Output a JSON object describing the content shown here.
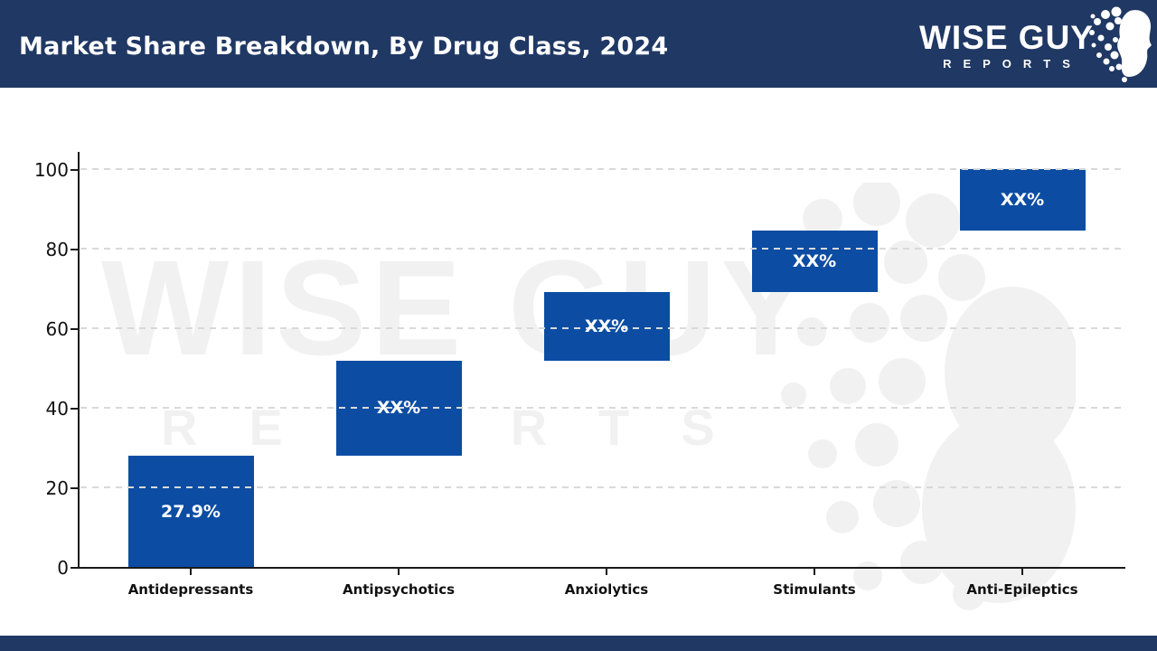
{
  "header": {
    "title": "Market Share Breakdown, By Drug Class, 2024",
    "logo": {
      "line1": "WISE GUY",
      "line2": "REPORTS"
    }
  },
  "watermark": {
    "line1": "WISE GUY",
    "line2": "REPORTS"
  },
  "colors": {
    "header_navy": "#203864",
    "footer_navy": "#203864",
    "bar_blue": "#0c4da3",
    "gridline": "#d9d9d9",
    "axis": "#1a1a1a",
    "watermark_gray": "#f1f1f1",
    "bar_label_text": "#ffffff"
  },
  "chart_data": {
    "type": "bar",
    "subtype": "waterfall-floating-bars",
    "title": "Market Share Breakdown, By Drug Class, 2024",
    "categories": [
      "Antidepressants",
      "Antipsychotics",
      "Anxiolytics",
      "Stimulants",
      "Anti-Epileptics"
    ],
    "segments": [
      {
        "category": "Antidepressants",
        "start": 0,
        "end": 27.9,
        "label": "27.9%"
      },
      {
        "category": "Antipsychotics",
        "start": 27.9,
        "end": 51.9,
        "label": "XX%"
      },
      {
        "category": "Anxiolytics",
        "start": 51.9,
        "end": 69.2,
        "label": "XX%"
      },
      {
        "category": "Stimulants",
        "start": 69.2,
        "end": 84.6,
        "label": "XX%"
      },
      {
        "category": "Anti-Epileptics",
        "start": 84.6,
        "end": 100,
        "label": "XX%"
      }
    ],
    "yticks": [
      0,
      20,
      40,
      60,
      80,
      100
    ],
    "ylim": [
      0,
      100
    ],
    "xlabel": "",
    "ylabel": "",
    "grid": "horizontal dashed, drawn over bars",
    "legend": "none",
    "bar_color": "#0c4da3"
  }
}
